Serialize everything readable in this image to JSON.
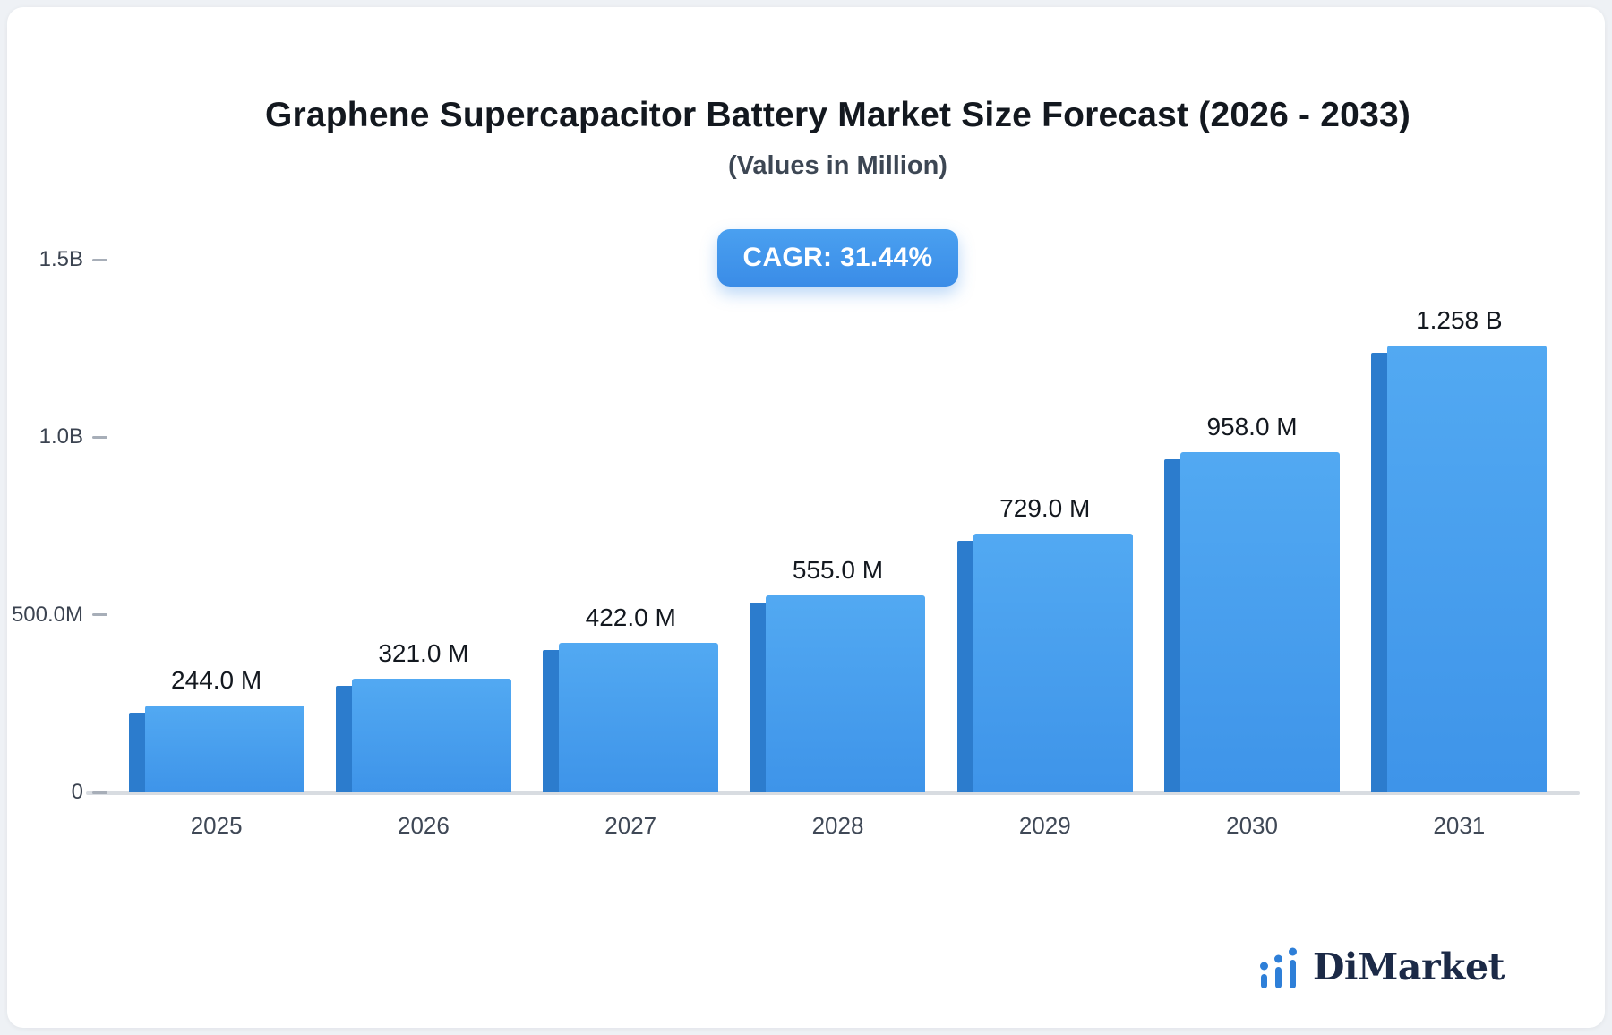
{
  "header": {
    "title": "Graphene Supercapacitor Battery Market Size Forecast (2026 - 2033)",
    "subtitle": "(Values in Million)"
  },
  "badge": {
    "label": "CAGR: 31.44%"
  },
  "logo": {
    "text": "DiMarket",
    "icon": "bar-chart-icon"
  },
  "colors": {
    "bar_face_top": "#52a9f2",
    "bar_face_bottom": "#3e94e9",
    "bar_side": "#2c7ccd",
    "badge_bg_top": "#4aa0f0",
    "badge_bg_bottom": "#3a8ce7",
    "axis_line": "#d8dce1",
    "logo_blue": "#2e7fd8",
    "logo_text": "#1c2a47"
  },
  "chart_data": {
    "type": "bar",
    "title": "Graphene Supercapacitor Battery Market Size Forecast (2026 - 2033)",
    "subtitle": "(Values in Million)",
    "cagr": "31.44%",
    "categories": [
      "2025",
      "2026",
      "2027",
      "2028",
      "2029",
      "2030",
      "2031"
    ],
    "values": [
      244.0,
      321.0,
      422.0,
      555.0,
      729.0,
      958.0,
      1258.0
    ],
    "value_labels": [
      "244.0 M",
      "321.0 M",
      "422.0 M",
      "555.0 M",
      "729.0 M",
      "958.0 M",
      "1.258 B"
    ],
    "ylim": [
      0,
      1500
    ],
    "y_ticks": [
      {
        "label": "1.5B",
        "value": 1500
      },
      {
        "label": "1.0B",
        "value": 1000
      },
      {
        "label": "500.0M",
        "value": 500
      },
      {
        "label": "0",
        "value": 0
      }
    ],
    "grid": false,
    "legend": false
  }
}
